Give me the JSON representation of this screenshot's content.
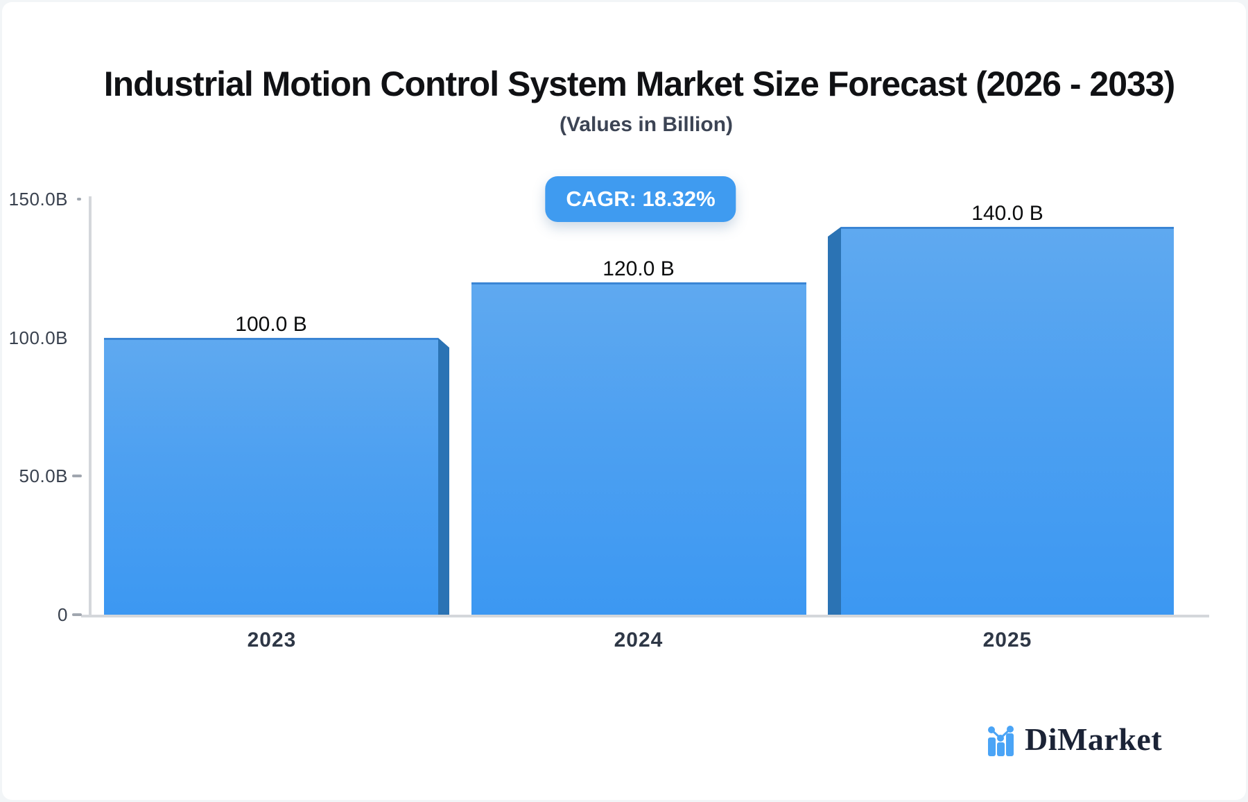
{
  "header": {
    "title": "Industrial Motion Control System Market Size Forecast (2026 - 2033)",
    "subtitle": "(Values in Billion)",
    "cagr_label": "CAGR: 18.32%"
  },
  "chart_data": {
    "type": "bar",
    "title": "Industrial Motion Control System Market Size Forecast (2026 - 2033)",
    "subtitle": "(Values in Billion)",
    "unit": "Billion",
    "cagr_percent": 18.32,
    "categories": [
      "2023",
      "2024",
      "2025"
    ],
    "values": [
      100.0,
      120.0,
      140.0
    ],
    "value_labels": [
      "100.0 B",
      "120.0 B",
      "140.0 B"
    ],
    "ylim": [
      0,
      150
    ],
    "ytick_labels": [
      "150.0B",
      "100.0B",
      "50.0B",
      "0"
    ],
    "grid": "off",
    "legend": "none",
    "colors": {
      "bar_top": "#5fa9f0",
      "bar_bottom": "#3c98f2",
      "bar_top_border": "#3a85d4",
      "bar_side_3d": "#2b73b4",
      "badge_bg": "#3f9bf0",
      "axis_line": "#d4d7db",
      "label_text": "#2e3746"
    }
  },
  "footer": {
    "brand": "DiMarket"
  }
}
